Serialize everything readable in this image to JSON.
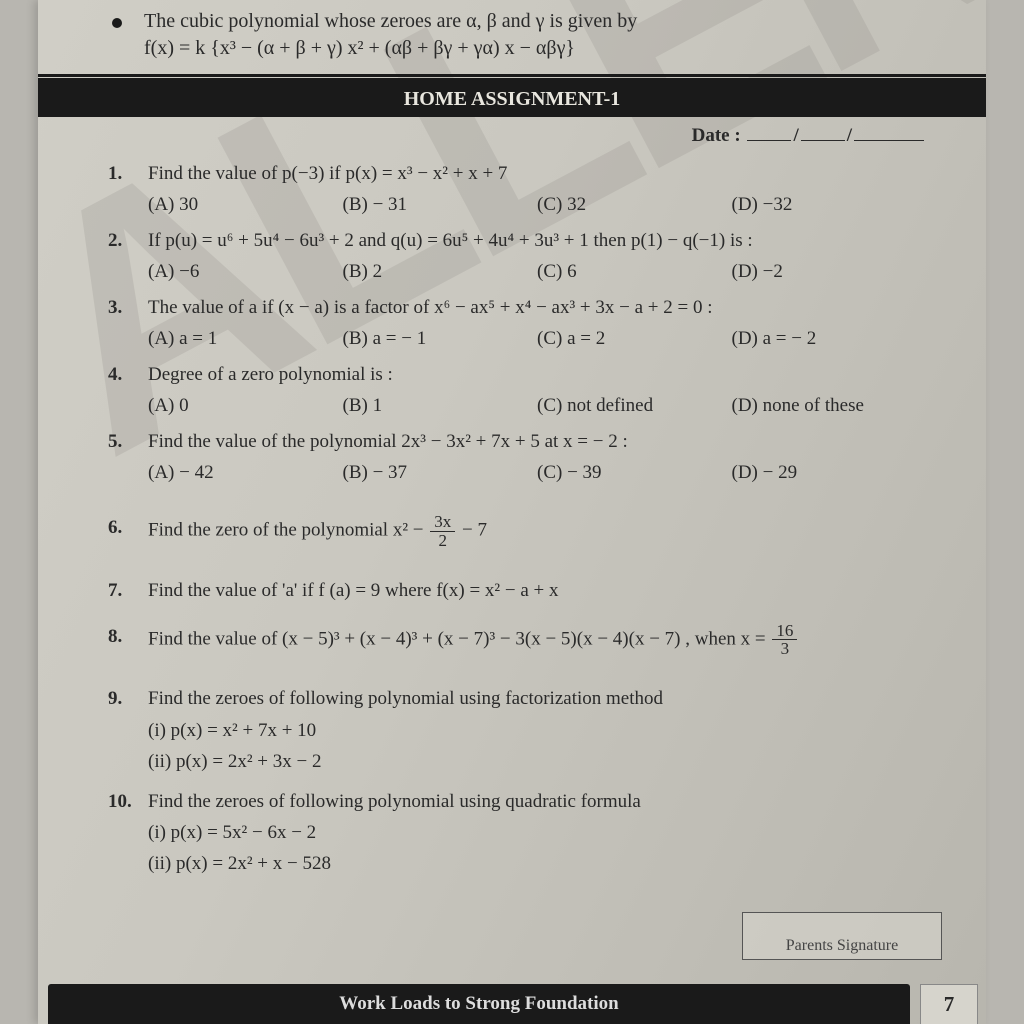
{
  "intro": {
    "line1": "The cubic polynomial whose zeroes are α, β and γ is given by",
    "formula": "f(x) = k {x³ − (α + β + γ) x² + (αβ + βγ + γα) x − αβγ}"
  },
  "banner": "HOME ASSIGNMENT-1",
  "date_label": "Date :",
  "questions": [
    {
      "n": "1.",
      "text": "Find the value of p(−3) if p(x) = x³ − x² + x + 7",
      "opts": [
        "(A) 30",
        "(B) − 31",
        "(C) 32",
        "(D) −32"
      ]
    },
    {
      "n": "2.",
      "text": "If p(u) = u⁶ + 5u⁴ − 6u³ + 2 and q(u) = 6u⁵ + 4u⁴ + 3u³ + 1 then p(1) − q(−1) is :",
      "opts": [
        "(A) −6",
        "(B) 2",
        "(C) 6",
        "(D) −2"
      ]
    },
    {
      "n": "3.",
      "text": "The value of a if (x − a) is a factor of x⁶ − ax⁵ + x⁴ − ax³ + 3x − a + 2 = 0 :",
      "opts": [
        "(A) a = 1",
        "(B) a = − 1",
        "(C) a = 2",
        "(D) a = − 2"
      ]
    },
    {
      "n": "4.",
      "text": "Degree of a zero polynomial is :",
      "opts": [
        "(A) 0",
        "(B) 1",
        "(C) not defined",
        "(D) none of these"
      ]
    },
    {
      "n": "5.",
      "text": "Find the value of the polynomial 2x³ − 3x² + 7x + 5 at x = − 2 :",
      "opts": [
        "(A) − 42",
        "(B) − 37",
        "(C) − 39",
        "(D) − 29"
      ]
    }
  ],
  "q6": {
    "n": "6.",
    "pre": "Find the zero of the polynomial  x² − ",
    "frac_n": "3x",
    "frac_d": "2",
    "post": " − 7"
  },
  "q7": {
    "n": "7.",
    "text": "Find the value of 'a' if f (a) = 9 where f(x) = x² − a + x"
  },
  "q8": {
    "n": "8.",
    "pre": "Find the value of  (x − 5)³ + (x − 4)³ + (x − 7)³ − 3(x − 5)(x − 4)(x − 7) , when x = ",
    "frac_n": "16",
    "frac_d": "3"
  },
  "q9": {
    "n": "9.",
    "text": "Find the zeroes of following polynomial using factorization method",
    "subs": [
      "(i) p(x) = x² + 7x + 10",
      "(ii) p(x) = 2x² + 3x − 2"
    ]
  },
  "q10": {
    "n": "10.",
    "text": "Find the zeroes of following polynomial using quadratic formula",
    "subs": [
      "(i) p(x) = 5x² − 6x − 2",
      "(ii) p(x) = 2x² + x − 528"
    ]
  },
  "sig": "Parents Signature",
  "footer_text": "Work Loads to Strong Foundation",
  "page_num": "7",
  "colors": {
    "bg": "#b8b6b0",
    "page": "#cac8c0",
    "ink": "#2a2a2a",
    "banner": "#1a1a1a"
  }
}
